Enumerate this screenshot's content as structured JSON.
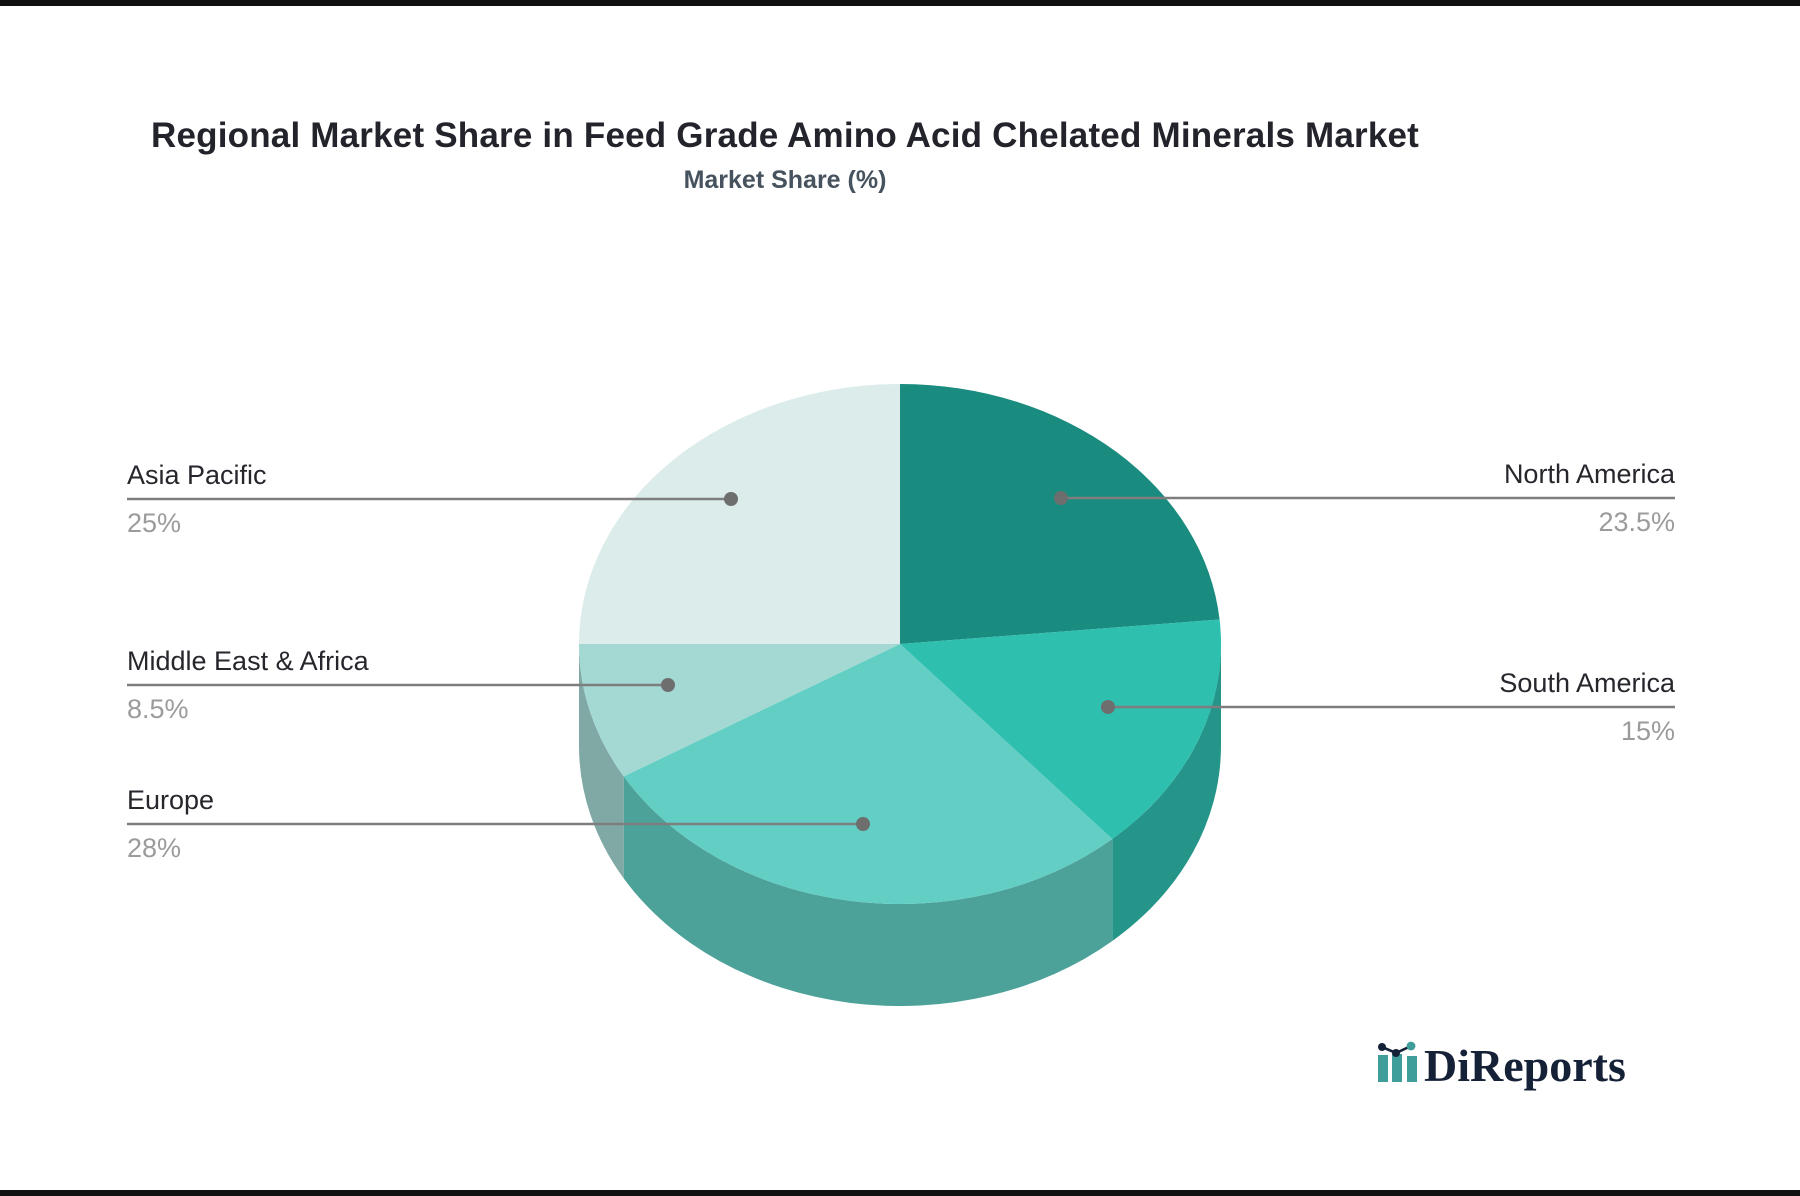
{
  "title": "Regional Market Share in Feed Grade Amino Acid Chelated Minerals Market",
  "subtitle": "Market Share (%)",
  "chart_data": {
    "type": "pie",
    "style": "3d",
    "title": "Regional Market Share in Feed Grade Amino Acid Chelated Minerals Market",
    "subtitle": "Market Share (%)",
    "unit": "%",
    "start_angle_deg": 0,
    "direction": "clockwise",
    "legend": "none, callout labels with leader lines",
    "labels": [
      "North America",
      "South America",
      "Europe",
      "Middle East & Africa",
      "Asia Pacific"
    ],
    "values": [
      23.5,
      15,
      28,
      8.5,
      25
    ],
    "value_texts": [
      "23.5%",
      "15%",
      "28%",
      "8.5%",
      "25%"
    ],
    "colors": [
      "#1a8b7f",
      "#2ebfae",
      "#62cec4",
      "#a4d9d3",
      "#dcecea"
    ]
  },
  "logo": {
    "text": "DiReports"
  },
  "colors": {
    "background": "#ffffff",
    "title_text": "#23242b",
    "subtitle_text": "#46525e",
    "label_text": "#26262c",
    "pct_text": "#9b9b9b",
    "leader_line": "#7e7e7e",
    "leader_dot": "#6e6e6e",
    "logo_navy": "#152137",
    "logo_teal": "#3f9e99",
    "edge_bar": "#111111"
  }
}
